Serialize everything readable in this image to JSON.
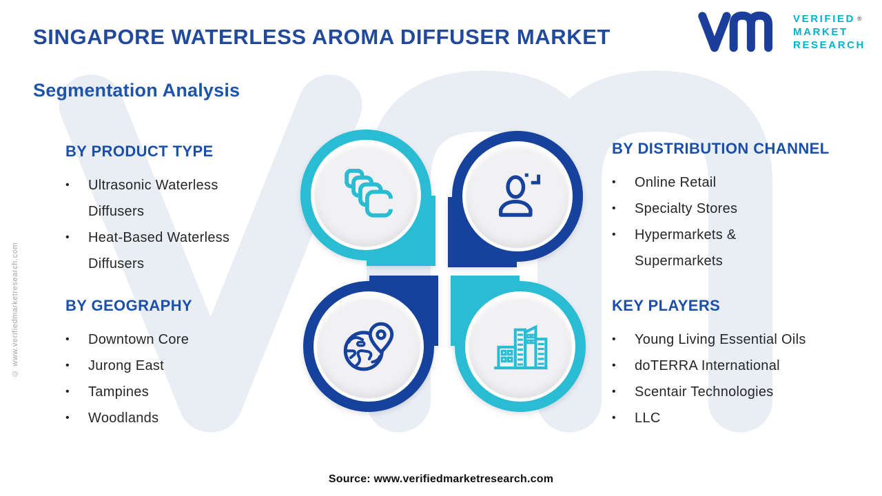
{
  "header": {
    "title": "SINGAPORE WATERLESS AROMA DIFFUSER MARKET",
    "subtitle": "Segmentation Analysis"
  },
  "logo": {
    "brand_lines": [
      "VERIFIED",
      "MARKET",
      "RESEARCH"
    ],
    "registered": "®",
    "monogram": "vm-monogram"
  },
  "sections": [
    {
      "id": "product-type",
      "heading": "BY PRODUCT TYPE",
      "items": [
        "Ultrasonic Waterless\nDiffusers",
        "Heat-Based Waterless\nDiffusers"
      ]
    },
    {
      "id": "distribution-channel",
      "heading": "BY DISTRIBUTION CHANNEL",
      "items": [
        "Online Retail",
        "Specialty Stores",
        "Hypermarkets &\nSupermarkets"
      ]
    },
    {
      "id": "geography",
      "heading": "BY GEOGRAPHY",
      "items": [
        "Downtown Core",
        "Jurong East",
        "Tampines",
        "Woodlands"
      ]
    },
    {
      "id": "key-players",
      "heading": "KEY PLAYERS",
      "items": [
        "Young Living Essential Oils",
        "doTERRA International",
        "Scentair Technologies",
        "LLC"
      ]
    }
  ],
  "quadrants": [
    {
      "position": "top-left",
      "icon": "stacked-squares-icon",
      "ring_color": "teal"
    },
    {
      "position": "top-right",
      "icon": "person-icon",
      "ring_color": "navy"
    },
    {
      "position": "bottom-left",
      "icon": "globe-location-icon",
      "ring_color": "navy"
    },
    {
      "position": "bottom-right",
      "icon": "buildings-icon",
      "ring_color": "teal"
    }
  ],
  "bullet_glyph": "•",
  "footer": {
    "source": "Source: www.verifiedmarketresearch.com"
  },
  "side_text": "© www.verifiedmarketresearch.com",
  "colors": {
    "navy": "#16419c",
    "teal": "#29bcd3",
    "title-blue": "#21499e",
    "subtitle-blue": "#1c55ab",
    "heading-blue": "#1b4fa8",
    "logo-navy": "#1b3e9b",
    "logo-teal": "#00b1ca",
    "watermark": "#e9edf4",
    "disc": "#f1f1f3",
    "body-text": "#262626",
    "muted-gray": "#a5a5a5"
  }
}
